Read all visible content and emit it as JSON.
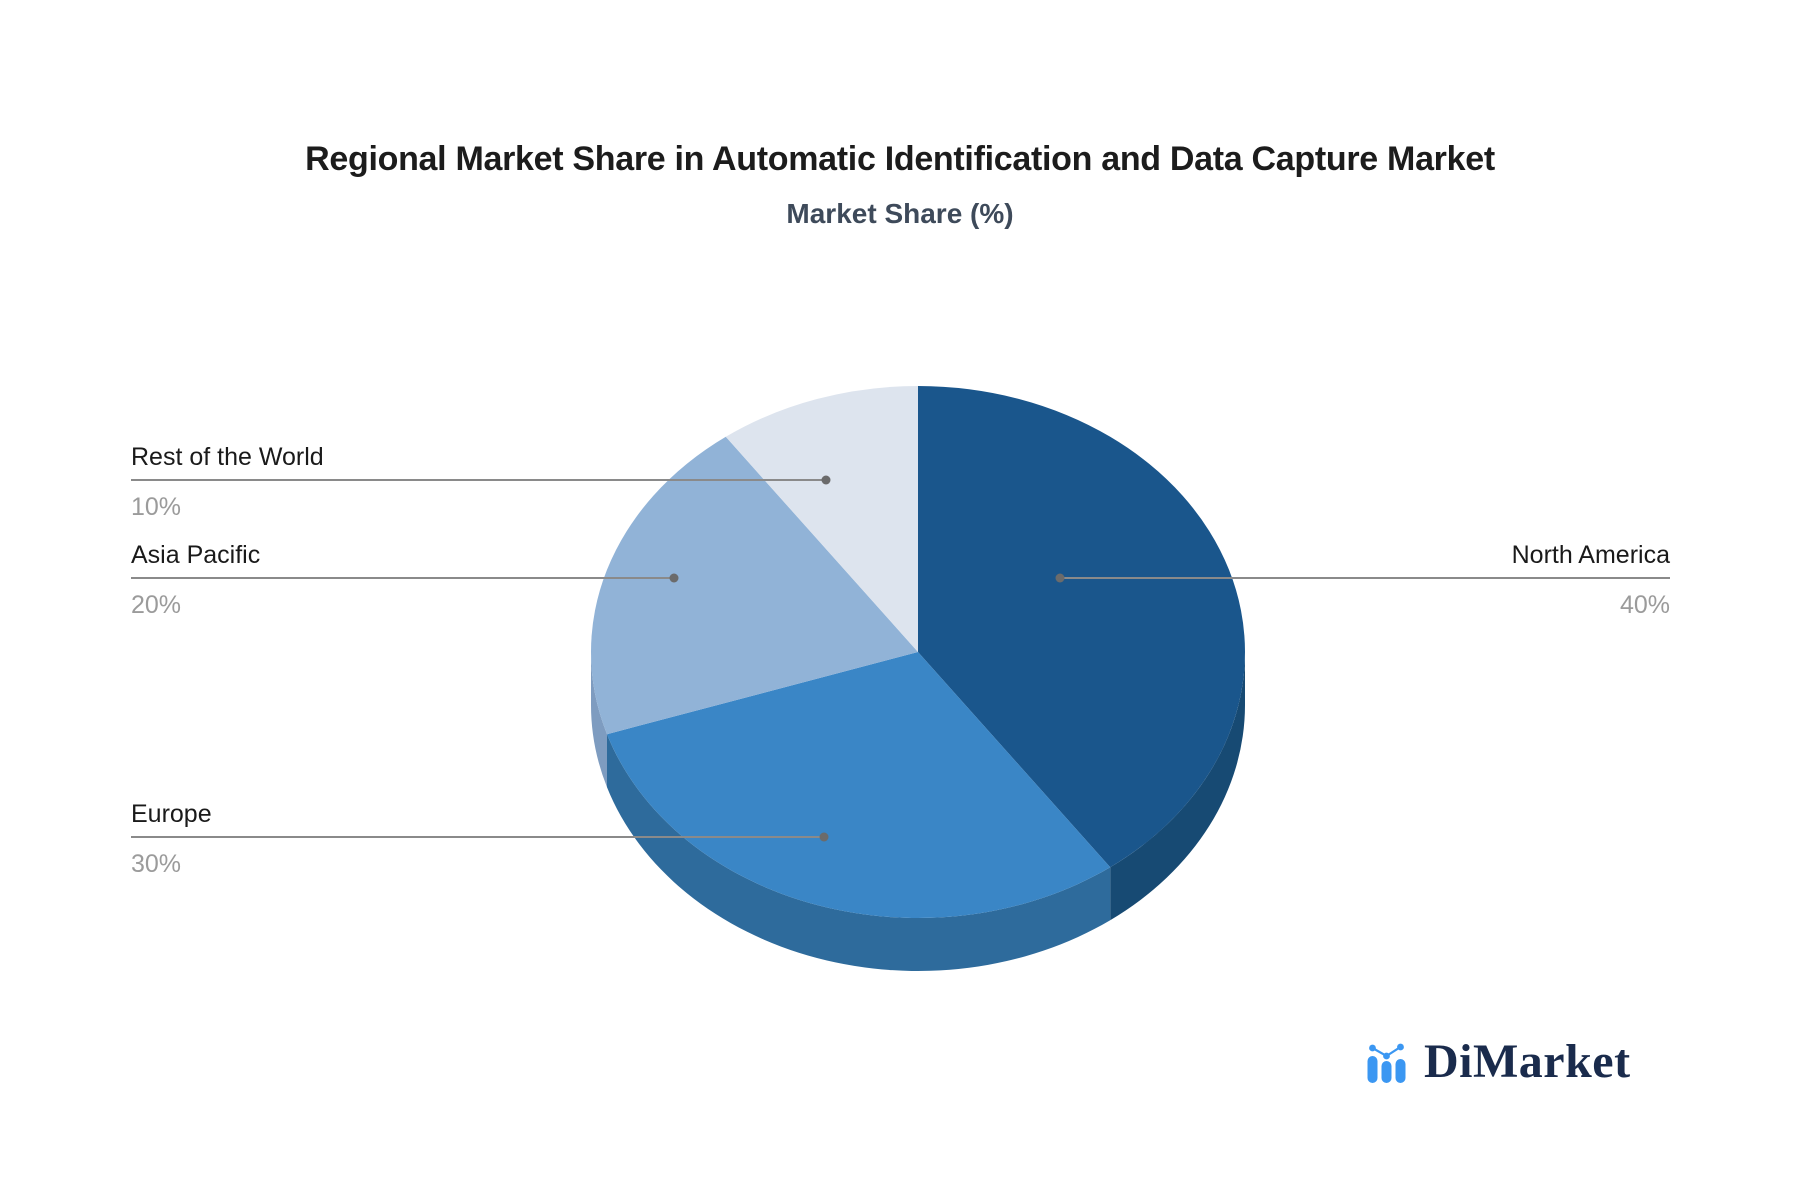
{
  "chart_data": {
    "type": "pie",
    "style": "3d",
    "title": "Regional Market Share in Automatic Identification and Data Capture Market",
    "subtitle": "Market Share (%)",
    "unit": "%",
    "start_angle_deg": 0,
    "direction": "clockwise",
    "legend_position": "none",
    "label_style": "leader-lines-with-dots",
    "segments": [
      {
        "label": "North America",
        "value": 40,
        "display": "40%",
        "color": "#1a568c",
        "side_color": "#174a73"
      },
      {
        "label": "Europe",
        "value": 30,
        "display": "30%",
        "color": "#3a86c6",
        "side_color": "#2e6b9c"
      },
      {
        "label": "Asia Pacific",
        "value": 20,
        "display": "20%",
        "color": "#91b3d7",
        "side_color": "#7e9cc0"
      },
      {
        "label": "Rest of the World",
        "value": 10,
        "display": "10%",
        "color": "#dde4ee",
        "side_color": "#c3cede"
      }
    ],
    "annotation_colors": {
      "label_text": "#1a1a1a",
      "value_text": "#9b9b9b",
      "leader_line": "#8a8a8a",
      "leader_dot": "#6b6b6b"
    }
  },
  "branding": {
    "logo_text": "DiMarket",
    "logo_icon": "bar-line-chart-icon",
    "icon_color": "#3b97f2",
    "text_color": "#1a2b4c"
  }
}
